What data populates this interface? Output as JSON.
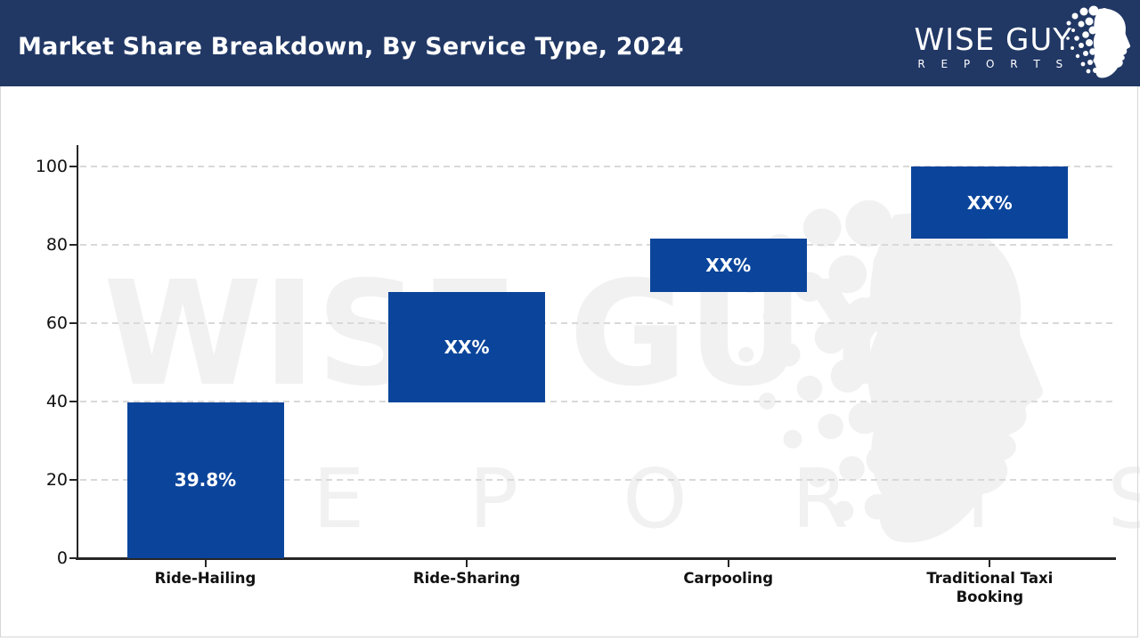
{
  "header": {
    "title": "Market Share Breakdown, By Service Type, 2024"
  },
  "logo": {
    "line1": "WISE GUY",
    "line2": "R E P O R T S"
  },
  "watermark": {
    "line1": "WISE GUY",
    "line2": "R E P O R T S"
  },
  "colors": {
    "header_bg": "#213865",
    "bar": "#0B459B",
    "bar_label_text": "#FFFFFF",
    "axis": "#262626",
    "grid": "#D9D9D9",
    "watermark": "#F1F1F2",
    "tick_text": "#111111"
  },
  "chart_data": {
    "type": "bar",
    "style": "waterfall",
    "title": "Market Share Breakdown, By Service Type, 2024",
    "xlabel": "",
    "ylabel": "",
    "categories": [
      "Ride-Hailing",
      "Ride-Sharing",
      "Carpooling",
      "Traditional Taxi Booking"
    ],
    "series": [
      {
        "name": "Market Share (%)",
        "segments": [
          {
            "start": 0,
            "end": 39.8,
            "label": "39.8%"
          },
          {
            "start": 39.8,
            "end": 68,
            "label": "XX%"
          },
          {
            "start": 68,
            "end": 81.5,
            "label": "XX%"
          },
          {
            "start": 81.5,
            "end": 100,
            "label": "XX%"
          }
        ]
      }
    ],
    "yticks": [
      0,
      20,
      40,
      60,
      80,
      100
    ],
    "ylim": [
      0,
      105.5
    ],
    "grid": "horizontal-dashed",
    "legend": "none",
    "bar_color": "#0B459B",
    "label_color": "#FFFFFF"
  }
}
